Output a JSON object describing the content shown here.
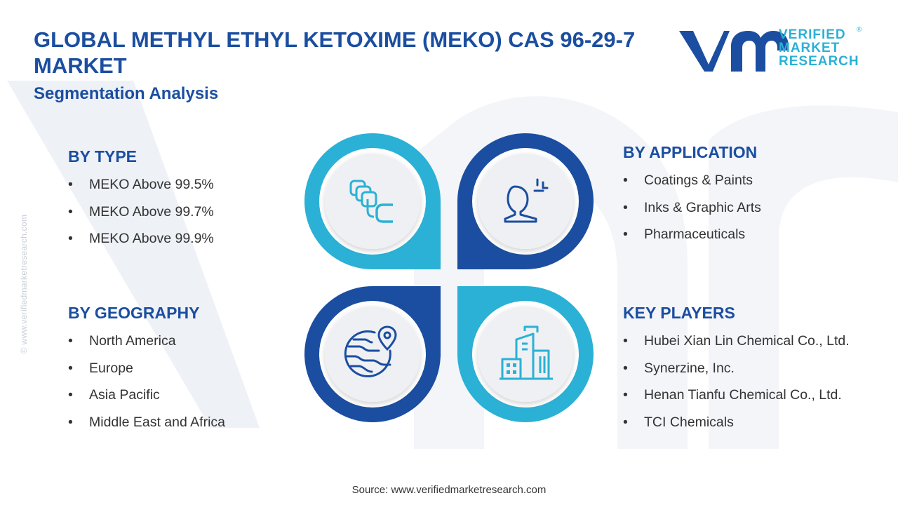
{
  "header": {
    "title": "GLOBAL METHYL ETHYL KETOXIME (MEKO) CAS 96-29-7 MARKET",
    "subtitle": "Segmentation Analysis"
  },
  "logo": {
    "line1": "VERIFIED",
    "line2": "MARKET",
    "line3": "RESEARCH",
    "registered": "®"
  },
  "side_url": "© www.verifiedmarketresearch.com",
  "segments": {
    "type": {
      "heading": "BY TYPE",
      "items": [
        "MEKO Above 99.5%",
        "MEKO Above 99.7%",
        "MEKO Above 99.9%"
      ]
    },
    "application": {
      "heading": "BY APPLICATION",
      "items": [
        "Coatings & Paints",
        "Inks & Graphic Arts",
        "Pharmaceuticals"
      ]
    },
    "geography": {
      "heading": "BY GEOGRAPHY",
      "items": [
        "North America",
        "Europe",
        "Asia Pacific",
        "Middle East and Africa"
      ]
    },
    "key_players": {
      "heading": "KEY PLAYERS",
      "items": [
        "Hubei Xian Lin Chemical Co., Ltd.",
        "Synerzine, Inc.",
        "Henan Tianfu Chemical Co., Ltd.",
        "TCI Chemicals"
      ]
    }
  },
  "icons": {
    "top_left": "layered-blocks-icon",
    "top_right": "person-presentation-icon",
    "bottom_left": "globe-location-icon",
    "bottom_right": "city-buildings-icon"
  },
  "colors": {
    "navy": "#1b4ea0",
    "cyan": "#2bb1d5",
    "circle_fill": "#eef0f3"
  },
  "source": "Source: www.verifiedmarketresearch.com"
}
